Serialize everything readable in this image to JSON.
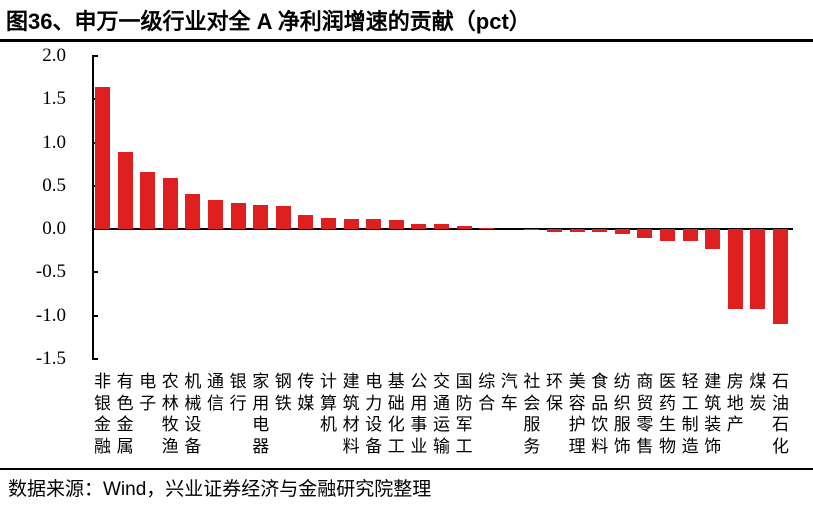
{
  "title": "图36、申万一级行业对全 A 净利润增速的贡献（pct）",
  "source": "数据来源：Wind，兴业证券经济与金融研究院整理",
  "colors": {
    "bar": "#e02020",
    "axis": "#000000"
  },
  "chart_data": {
    "type": "bar",
    "title": "图36、申万一级行业对全 A 净利润增速的贡献（pct）",
    "xlabel": "",
    "ylabel": "",
    "ylim": [
      -1.5,
      2.0
    ],
    "yticks": [
      2.0,
      1.5,
      1.0,
      0.5,
      0.0,
      -0.5,
      -1.0,
      -1.5
    ],
    "ytick_labels": [
      "2.0",
      "1.5",
      "1.0",
      "0.5",
      "0.0",
      "-0.5",
      "-1.0",
      "-1.5"
    ],
    "grid": false,
    "legend": null,
    "categories": [
      "非银金融",
      "有色金属",
      "电子",
      "农林牧渔",
      "机械设备",
      "通信",
      "银行",
      "家用电器",
      "钢铁",
      "传媒",
      "计算机",
      "建筑材料",
      "电力设备",
      "基础化工",
      "公用事业",
      "交通运输",
      "国防军工",
      "综合",
      "汽车",
      "社会服务",
      "环保",
      "美容护理",
      "食品饮料",
      "纺织服饰",
      "商贸零售",
      "医药生物",
      "轻工制造",
      "建筑装饰",
      "房地产",
      "煤炭",
      "石油石化"
    ],
    "values": [
      1.64,
      0.89,
      0.66,
      0.59,
      0.4,
      0.34,
      0.3,
      0.28,
      0.27,
      0.16,
      0.13,
      0.12,
      0.12,
      0.1,
      0.06,
      0.06,
      0.04,
      0.01,
      0.0,
      -0.01,
      -0.03,
      -0.03,
      -0.03,
      -0.06,
      -0.1,
      -0.14,
      -0.14,
      -0.23,
      -0.93,
      -0.93,
      -1.1
    ]
  }
}
